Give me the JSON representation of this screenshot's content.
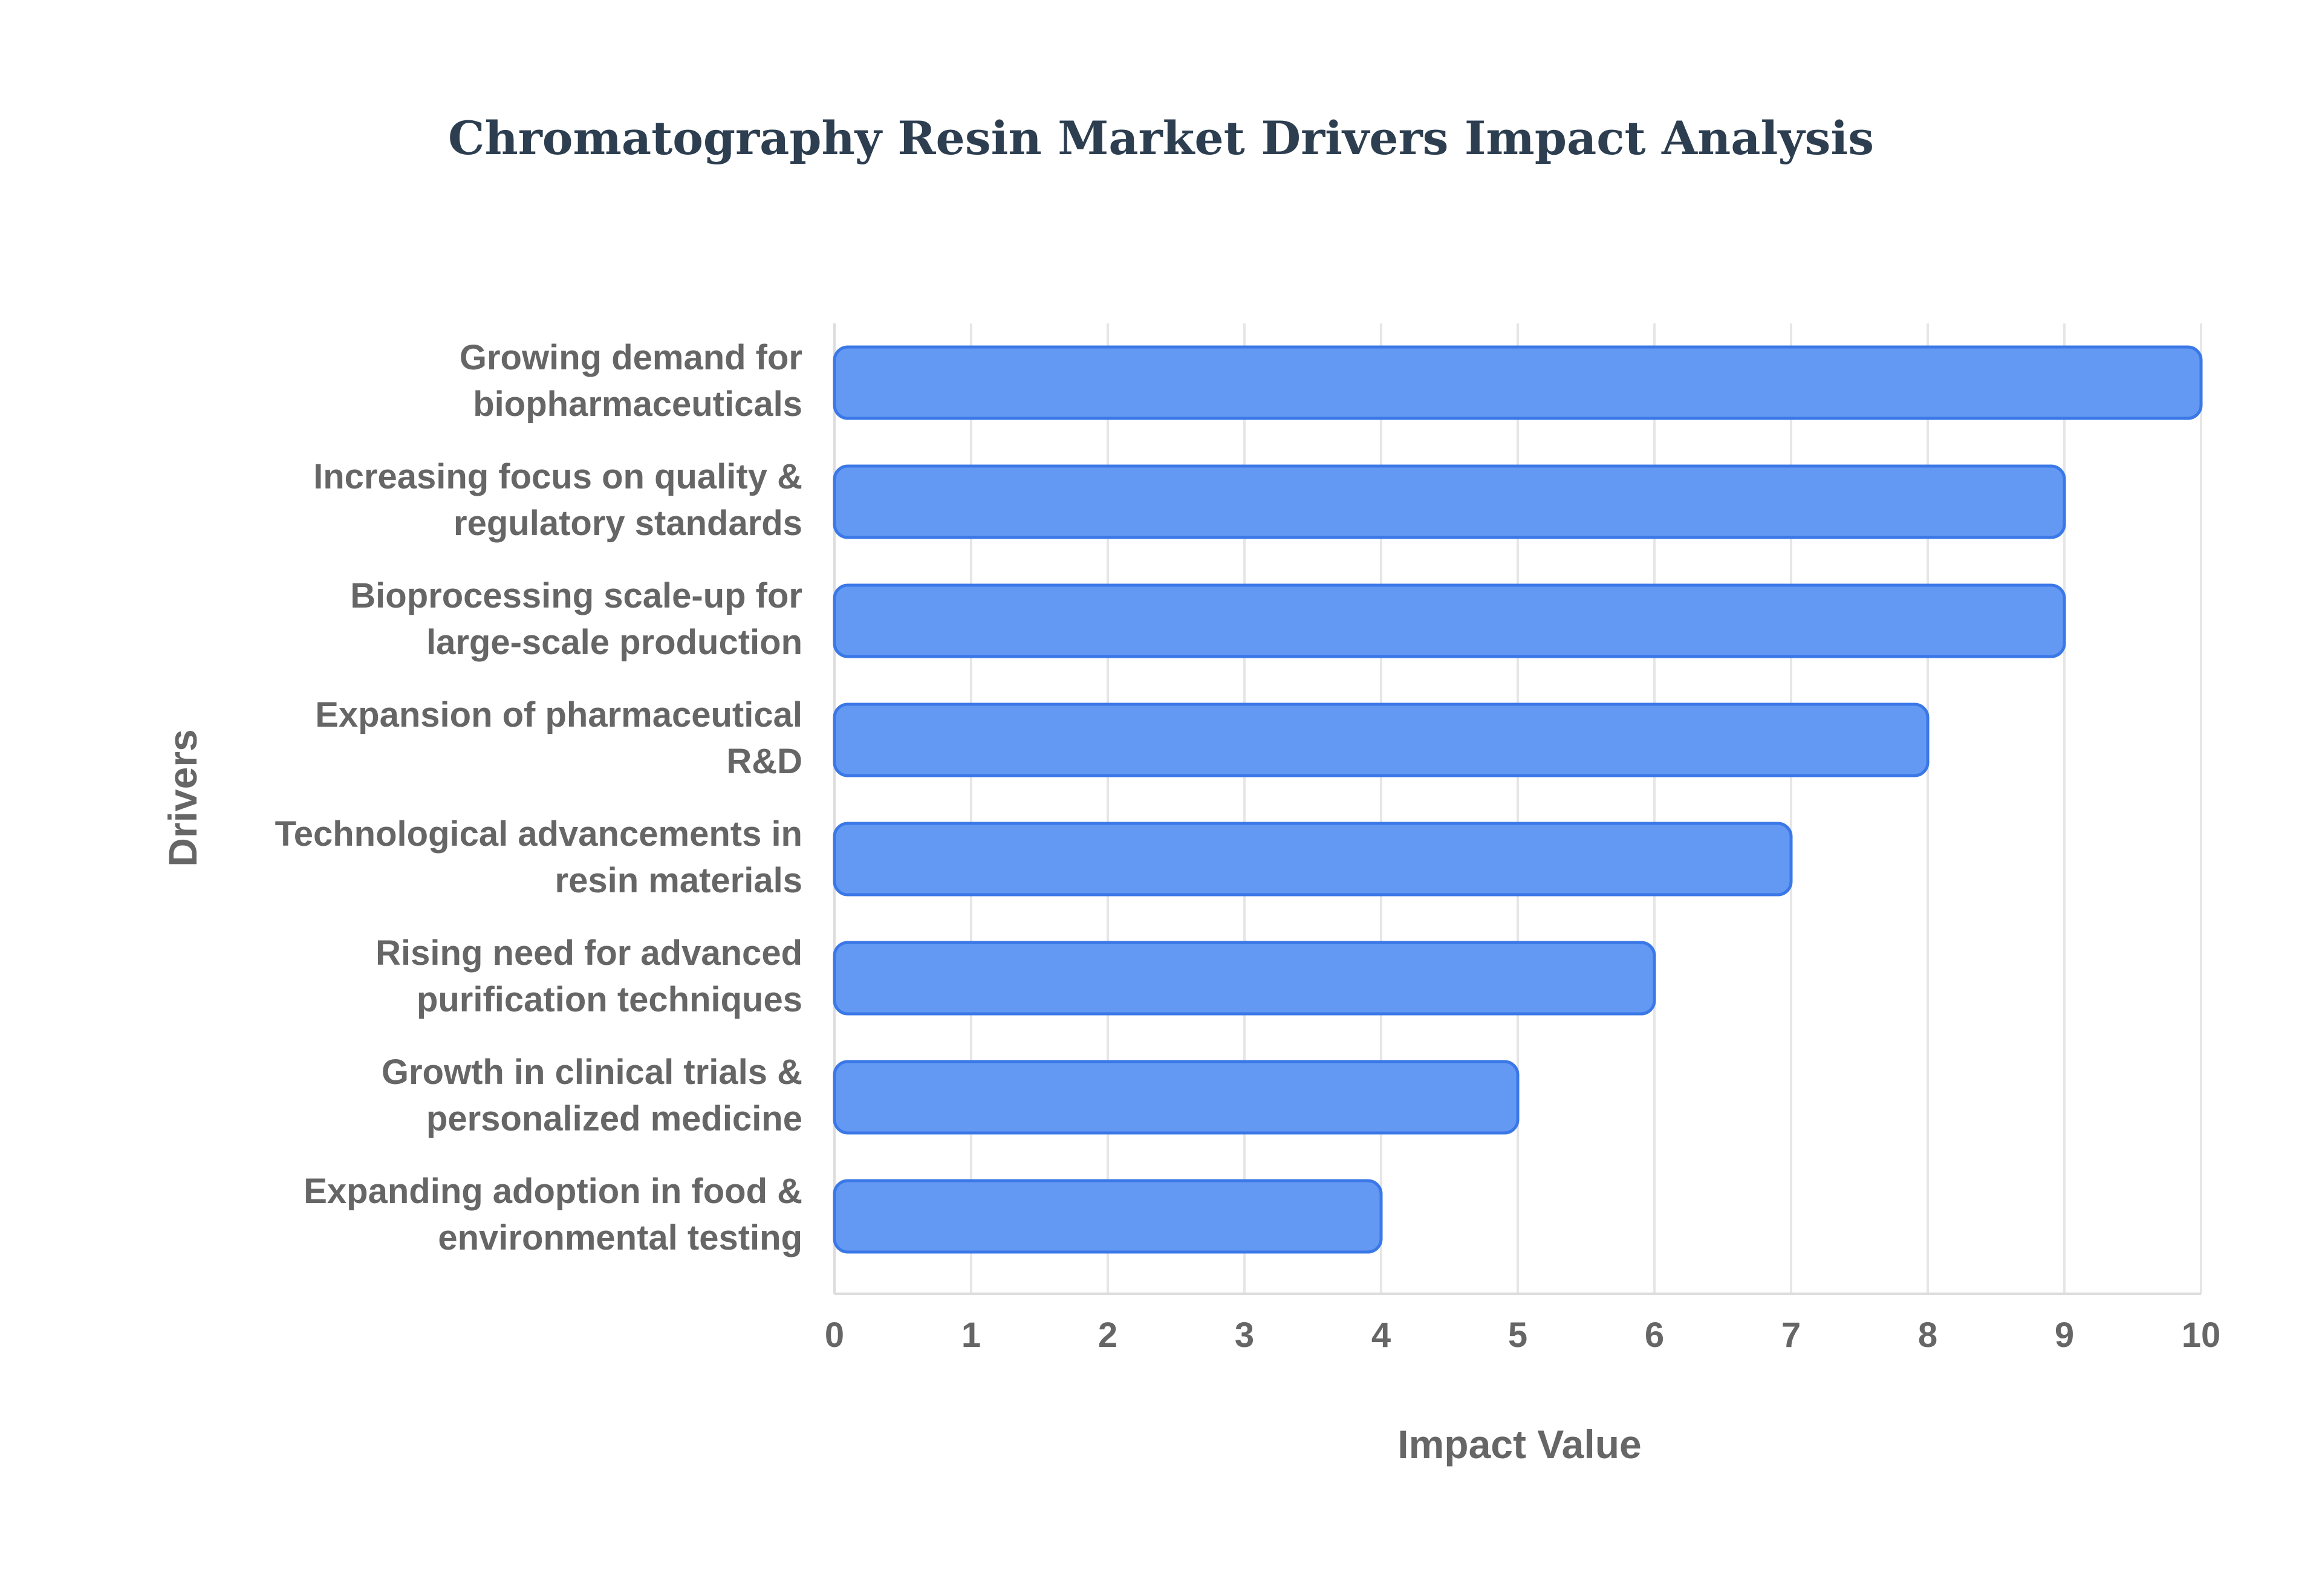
{
  "chart_data": {
    "type": "bar",
    "orientation": "horizontal",
    "title": "Chromatography Resin Market Drivers Impact Analysis",
    "xlabel": "Impact Value",
    "ylabel": "Drivers",
    "xlim": [
      0,
      10
    ],
    "xticks": [
      0,
      1,
      2,
      3,
      4,
      5,
      6,
      7,
      8,
      9,
      10
    ],
    "grid": true,
    "legend": "none",
    "categories": [
      [
        "Growing demand for",
        "biopharmaceuticals"
      ],
      [
        "Increasing focus on quality &",
        "regulatory standards"
      ],
      [
        "Bioprocessing scale-up for",
        "large-scale production"
      ],
      [
        "Expansion of pharmaceutical",
        "R&D"
      ],
      [
        "Technological advancements in",
        "resin materials"
      ],
      [
        "Rising need for advanced",
        "purification techniques"
      ],
      [
        "Growth in clinical trials &",
        "personalized medicine"
      ],
      [
        "Expanding adoption in food &",
        "environmental testing"
      ]
    ],
    "values": [
      10,
      9,
      9,
      8,
      7,
      6,
      5,
      4
    ],
    "colors": {
      "bar_fill": "#6499f3",
      "bar_stroke": "#3b78e7"
    }
  }
}
